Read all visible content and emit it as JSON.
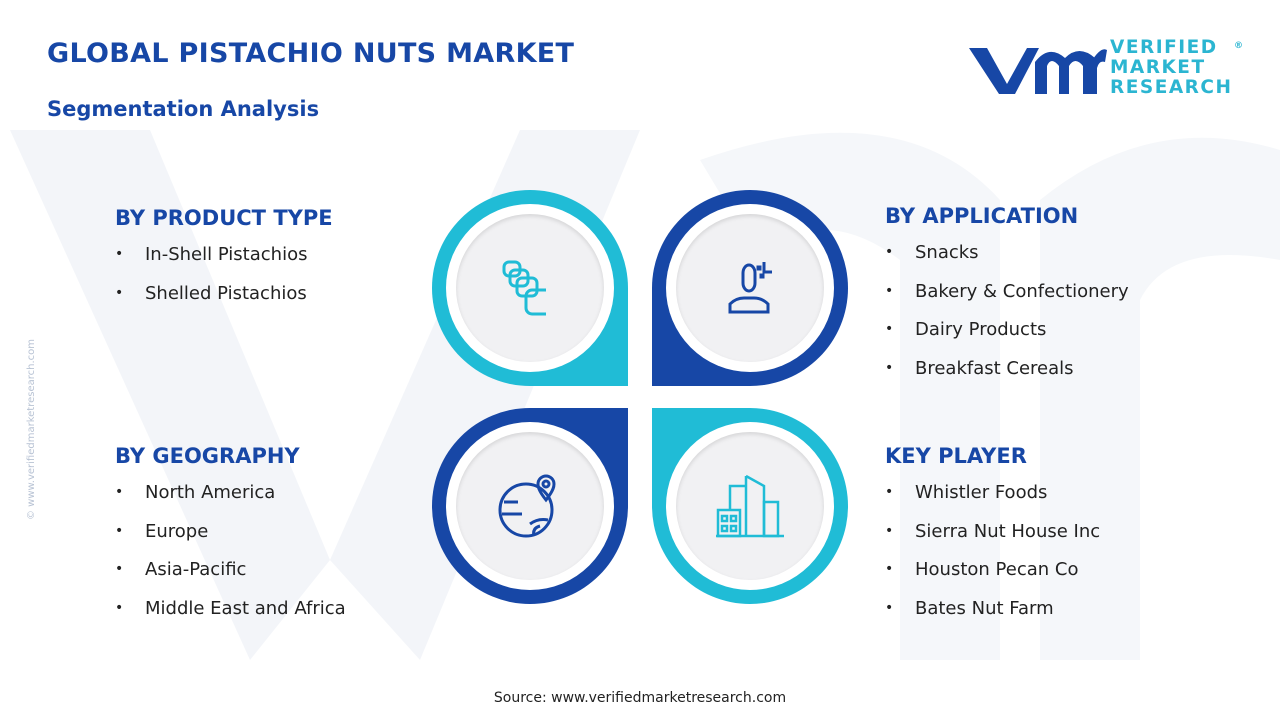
{
  "header": {
    "title": "GLOBAL PISTACHIO NUTS MARKET",
    "subtitle": "Segmentation Analysis"
  },
  "logo": {
    "line1": "VERIFIED",
    "line2": "MARKET",
    "line3": "RESEARCH",
    "mark": "vmr",
    "registered": "®"
  },
  "watermark": "© www.verifiedmarketresearch.com",
  "colors": {
    "dark_blue": "#1747a6",
    "cyan": "#20bcd6",
    "title": "#1747a6"
  },
  "segments": [
    {
      "heading": "BY PRODUCT TYPE",
      "icon": "stacked-shells-icon",
      "items": [
        "In-Shell Pistachios",
        "Shelled Pistachios"
      ]
    },
    {
      "heading": "BY APPLICATION",
      "icon": "user-application-icon",
      "items": [
        "Snacks",
        "Bakery & Confectionery",
        "Dairy Products",
        "Breakfast Cereals"
      ]
    },
    {
      "heading": "BY GEOGRAPHY",
      "icon": "globe-location-icon",
      "items": [
        "North America",
        "Europe",
        "Asia-Pacific",
        "Middle East and Africa"
      ]
    },
    {
      "heading": "KEY PLAYER",
      "icon": "buildings-icon",
      "items": [
        "Whistler Foods",
        "Sierra Nut House Inc",
        "Houston Pecan Co",
        "Bates Nut Farm"
      ]
    }
  ],
  "bullet": "•",
  "source": "Source: www.verifiedmarketresearch.com"
}
